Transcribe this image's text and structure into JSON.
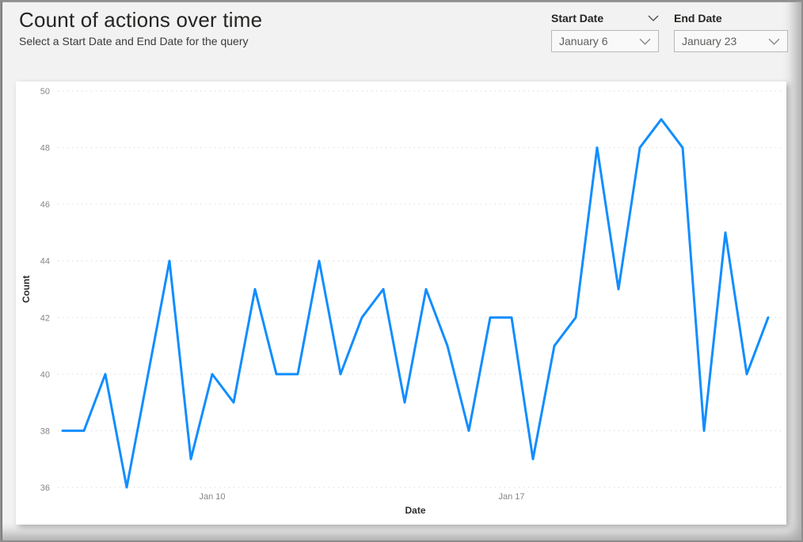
{
  "header": {
    "title": "Count of actions over time",
    "subtitle": "Select a Start Date and End Date for the query"
  },
  "slicers": {
    "start": {
      "label": "Start Date",
      "value": "January 6",
      "icon": "chevron-down-icon"
    },
    "end": {
      "label": "End Date",
      "value": "January 23",
      "icon": "chevron-down-icon"
    }
  },
  "chart_data": {
    "type": "line",
    "title": "Count of actions over time",
    "xlabel": "Date",
    "ylabel": "Count",
    "ylim": [
      36,
      50
    ],
    "ytick_step": 2,
    "grid": "dotted-horizontal",
    "legend": "none",
    "line_color": "#118DFF",
    "values": [
      38,
      38,
      40,
      36,
      40,
      44,
      37,
      40,
      39,
      43,
      40,
      40,
      44,
      40,
      42,
      43,
      39,
      43,
      41,
      38,
      42,
      42,
      37,
      41,
      42,
      48,
      43,
      48,
      49,
      48,
      38,
      45,
      40,
      42
    ],
    "xticks": [
      {
        "index": 7,
        "label": "Jan 10"
      },
      {
        "index": 21,
        "label": "Jan 17"
      }
    ],
    "x_note": "two observations per day, Jan 6 through Jan 23"
  },
  "colors": {
    "page_background": "#f2f2f2",
    "card_background": "#ffffff",
    "accent_line": "#118DFF",
    "text_dark": "#252423",
    "text_gray": "#605e5c"
  }
}
